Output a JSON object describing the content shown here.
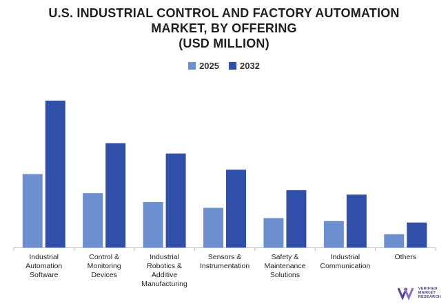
{
  "chart_data": {
    "type": "bar",
    "title": "U.S. INDUSTRIAL CONTROL AND FACTORY AUTOMATION MARKET, BY OFFERING (USD MILLION)",
    "title_lines": [
      "U.S. INDUSTRIAL CONTROL AND FACTORY AUTOMATION",
      "MARKET, BY OFFERING",
      "(USD MILLION)"
    ],
    "categories": [
      "Industrial Automation Software",
      "Control & Monitoring Devices",
      "Industrial Robotics & Additive Manufacturing",
      "Sensors & Instrumentation",
      "Safety & Maintenance Solutions",
      "Industrial Communication",
      "Others"
    ],
    "category_lines": [
      "Industrial\nAutomation\nSoftware",
      "Control &\nMonitoring\nDevices",
      "Industrial\nRobotics &\nAdditive\nManufacturing",
      "Sensors &\nInstrumentation",
      "Safety &\nMaintenance\nSolutions",
      "Industrial\nCommunication",
      "Others"
    ],
    "series": [
      {
        "name": "2025",
        "values": [
          50,
          37,
          31,
          27,
          20,
          18,
          9
        ],
        "color": "#6b8fcf"
      },
      {
        "name": "2032",
        "values": [
          100,
          71,
          64,
          53,
          39,
          36,
          17
        ],
        "color": "#2f4fa8"
      }
    ],
    "ylim": [
      0,
      105
    ],
    "xlabel": "",
    "ylabel": "",
    "grid": false,
    "legend_position": "top-center"
  },
  "brand": {
    "lines": [
      "VERIFIED",
      "MARKET",
      "RESEARCH"
    ],
    "color": "#4a3c8c"
  }
}
